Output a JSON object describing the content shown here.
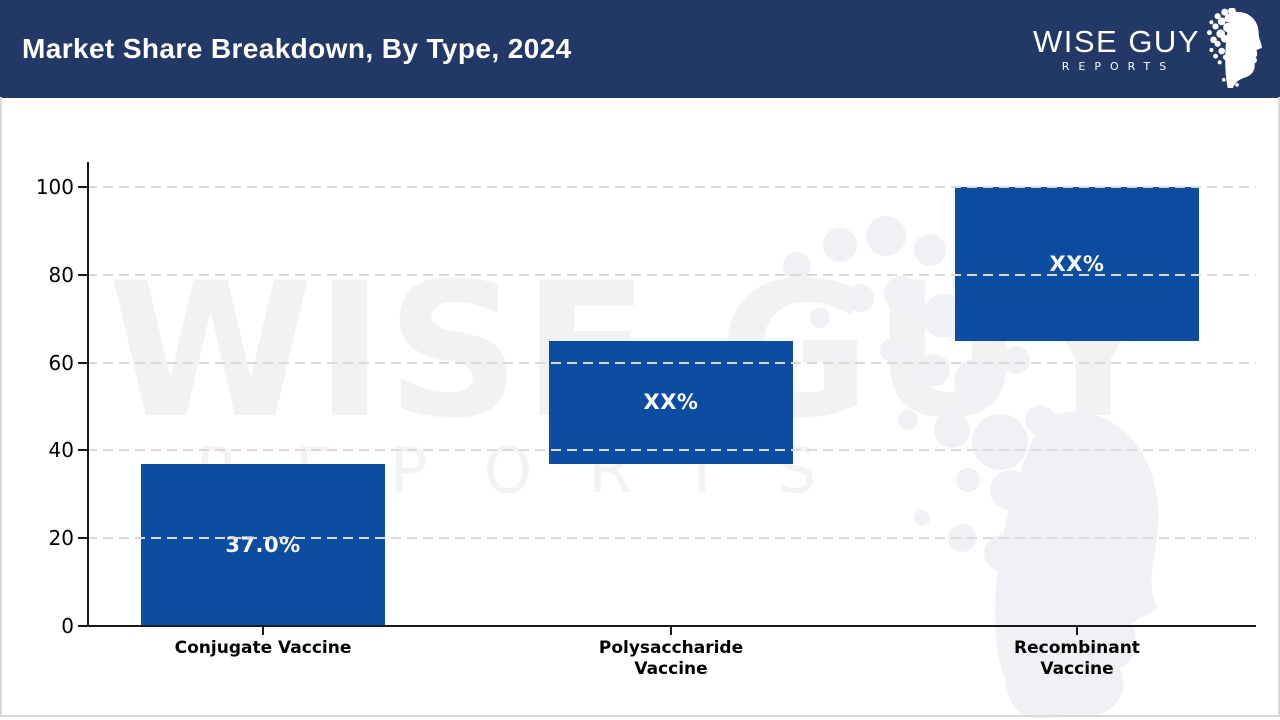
{
  "header": {
    "title": "Market Share Breakdown, By Type, 2024",
    "bg_color": "#223866",
    "logo": {
      "name": "WISE GUY",
      "subname": "REPORTS",
      "head_icon": "dotted-face-profile"
    }
  },
  "watermark": {
    "line1": "WISE GUY",
    "line2": "REPORTS"
  },
  "chart_data": {
    "type": "bar",
    "variant": "floating-waterfall",
    "title": "Market Share Breakdown, By Type, 2024",
    "categories": [
      "Conjugate Vaccine",
      "Polysaccharide\nVaccine",
      "Recombinant\nVaccine"
    ],
    "series": [
      {
        "name": "Market share (%)",
        "segments": [
          {
            "category": "Conjugate Vaccine",
            "start": 0,
            "end": 37,
            "label": "37.0%"
          },
          {
            "category": "Polysaccharide Vaccine",
            "start": 37,
            "end": 65,
            "label": "XX%"
          },
          {
            "category": "Recombinant Vaccine",
            "start": 65,
            "end": 100,
            "label": "XX%"
          }
        ]
      }
    ],
    "ylim": [
      0,
      100
    ],
    "yticks": [
      0,
      20,
      40,
      60,
      80,
      100
    ],
    "xlabel": "",
    "ylabel": "",
    "grid": {
      "horizontal": true,
      "style": "dashed",
      "color": "#d9d9d9"
    },
    "bar_color": "#0d4da1",
    "bar_label_color": "#ffffff",
    "legend": "none"
  }
}
